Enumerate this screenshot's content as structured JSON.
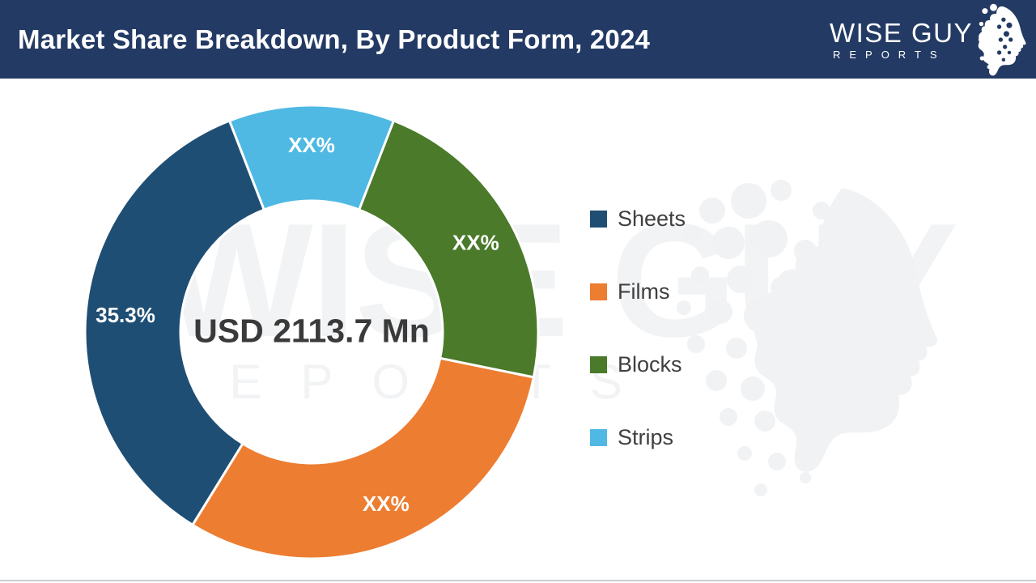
{
  "header": {
    "title": "Market Share Breakdown, By Product Form, 2024",
    "bg_color": "#233a64",
    "logo": {
      "line1": "WISE GUY",
      "line2": "REPORTS"
    }
  },
  "watermark": {
    "line1": "WISE GUY",
    "line2": "REPORTS"
  },
  "chart_data": {
    "type": "pie",
    "subtype": "donut",
    "title": "Market Share Breakdown, By Product Form, 2024",
    "center_label": "USD 2113.7 Mn",
    "legend_position": "right",
    "start_angle_deg": -21.25,
    "segments": [
      {
        "label": "Sheets",
        "display_pct": "35.3%",
        "value_pct_est": 35.3,
        "color": "#1f4e74"
      },
      {
        "label": "Films",
        "display_pct": "XX%",
        "value_pct_est": 30.6,
        "color": "#ed7d31"
      },
      {
        "label": "Blocks",
        "display_pct": "XX%",
        "value_pct_est": 22.3,
        "color": "#4a7a2a"
      },
      {
        "label": "Strips",
        "display_pct": "XX%",
        "value_pct_est": 11.8,
        "color": "#4fb9e3"
      }
    ]
  },
  "colors": {
    "header_bg": "#233a64",
    "center_text": "#3a3a3a",
    "legend_text": "#3f3f3f",
    "watermark": "#f2f3f5",
    "slice_gap": "#ffffff"
  }
}
